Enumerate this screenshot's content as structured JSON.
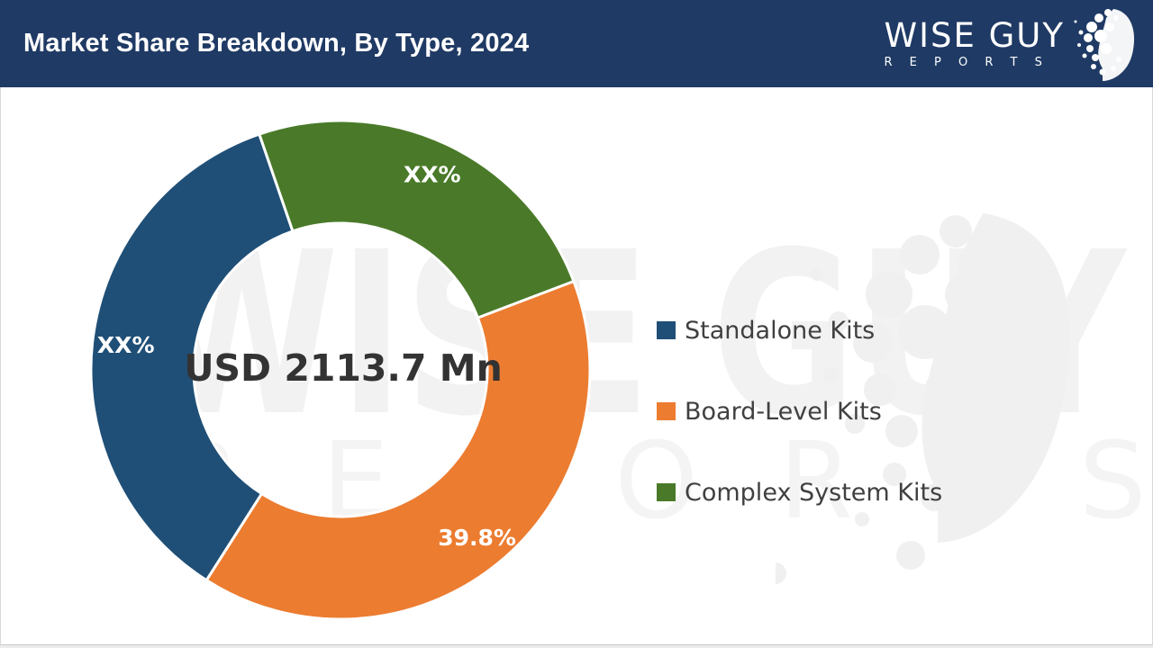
{
  "header": {
    "title": "Market Share Breakdown, By Type, 2024",
    "logo": {
      "line1": "WISE GUY",
      "line2": "R E P O R T S"
    },
    "bg_color": "#1f3a64"
  },
  "watermark": {
    "line1": "WISE GUY",
    "line2": "R E P O R T S"
  },
  "chart_data": {
    "type": "pie",
    "donut": true,
    "title": "Market Share Breakdown, By Type, 2024",
    "center_label": "USD 2113.7 Mn",
    "start_angle_deg": 109,
    "direction": "clockwise",
    "inner_radius_ratio": 0.59,
    "legend_position": "right",
    "segments": [
      {
        "label": "Complex System Kits",
        "display_label": "XX%",
        "value_pct": 24.5,
        "value_is_estimated": true,
        "color": "#4A7A29"
      },
      {
        "label": "Board-Level Kits",
        "display_label": "39.8%",
        "value_pct": 39.8,
        "value_is_estimated": false,
        "color": "#EC7C30"
      },
      {
        "label": "Standalone Kits",
        "display_label": "XX%",
        "value_pct": 35.7,
        "value_is_estimated": true,
        "color": "#1F4F77"
      }
    ]
  },
  "legend": {
    "items": [
      {
        "label": "Standalone Kits",
        "color": "#1F4F77"
      },
      {
        "label": "Board-Level Kits",
        "color": "#EC7C30"
      },
      {
        "label": "Complex System Kits",
        "color": "#4A7A29"
      }
    ]
  }
}
